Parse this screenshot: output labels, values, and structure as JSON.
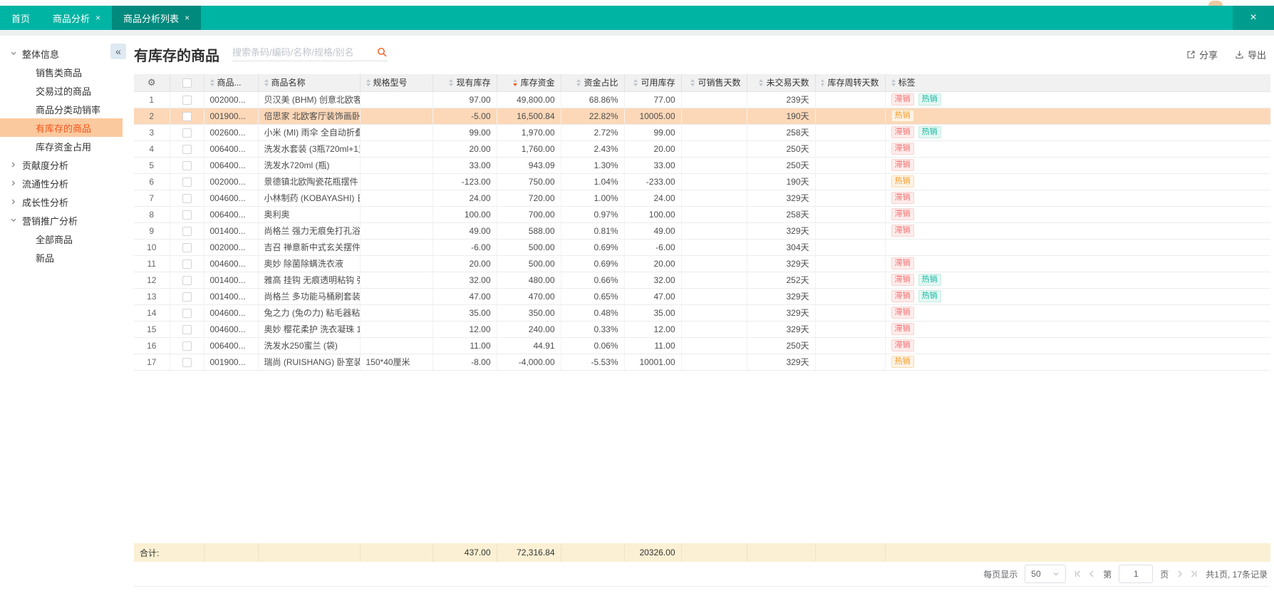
{
  "topbar": {
    "tabs": [
      {
        "label": "首页",
        "closable": false,
        "active": false
      },
      {
        "label": "商品分析",
        "closable": true,
        "active": false
      },
      {
        "label": "商品分析列表",
        "closable": true,
        "active": true
      }
    ],
    "close_glyph": "×"
  },
  "icons": {
    "settings": "⚙"
  },
  "sidebar": {
    "items": [
      {
        "label": "整体信息",
        "level": 0,
        "expanded": true
      },
      {
        "label": "销售类商品",
        "level": 1
      },
      {
        "label": "交易过的商品",
        "level": 1
      },
      {
        "label": "商品分类动销率",
        "level": 1
      },
      {
        "label": "有库存的商品",
        "level": 1,
        "selected": true
      },
      {
        "label": "库存资金占用",
        "level": 1
      },
      {
        "label": "贡献度分析",
        "level": 0,
        "expanded": false
      },
      {
        "label": "流通性分析",
        "level": 0,
        "expanded": false
      },
      {
        "label": "成长性分析",
        "level": 0,
        "expanded": false
      },
      {
        "label": "营销推广分析",
        "level": 0,
        "expanded": true
      },
      {
        "label": "全部商品",
        "level": 1
      },
      {
        "label": "新品",
        "level": 1
      }
    ]
  },
  "header": {
    "collapse_icon": "«",
    "title": "有库存的商品",
    "search_placeholder": "搜索条码/编码/名称/规格/别名",
    "share_label": "分享",
    "export_label": "导出"
  },
  "table": {
    "columns": [
      "商品...",
      "商品名称",
      "规格型号",
      "现有库存",
      "库存资金",
      "资金占比",
      "可用库存",
      "可销售天数",
      "未交易天数",
      "库存周转天数",
      "标签"
    ],
    "sorted_column": "库存资金",
    "sort_direction": "desc",
    "rows": [
      {
        "index": 1,
        "code": "002000...",
        "name": "贝汉美 (BHM) 创意北欧客",
        "spec": "",
        "stock": "97.00",
        "funds": "49,800.00",
        "ratio": "68.86%",
        "available": "77.00",
        "sellable_days": "",
        "no_trade_days": "239天",
        "turnover_days": "",
        "highlight": false,
        "tags": [
          {
            "label": "滞销",
            "type": "red"
          },
          {
            "label": "热销",
            "type": "teal"
          }
        ]
      },
      {
        "index": 2,
        "code": "001900...",
        "name": "倍思家 北欧客厅装饰画卧室",
        "spec": "",
        "stock": "-5.00",
        "funds": "16,500.84",
        "ratio": "22.82%",
        "available": "10005.00",
        "sellable_days": "",
        "no_trade_days": "190天",
        "turnover_days": "",
        "highlight": true,
        "tags": [
          {
            "label": "热销",
            "type": "orange"
          }
        ]
      },
      {
        "index": 3,
        "code": "002600...",
        "name": "小米 (MI) 雨伞 全自动折叠",
        "spec": "",
        "stock": "99.00",
        "funds": "1,970.00",
        "ratio": "2.72%",
        "available": "99.00",
        "sellable_days": "",
        "no_trade_days": "258天",
        "turnover_days": "",
        "highlight": false,
        "tags": [
          {
            "label": "滞销",
            "type": "red"
          },
          {
            "label": "热销",
            "type": "teal"
          }
        ]
      },
      {
        "index": 4,
        "code": "006400...",
        "name": "洗发水套装 (3瓶720ml+1支",
        "spec": "",
        "stock": "20.00",
        "funds": "1,760.00",
        "ratio": "2.43%",
        "available": "20.00",
        "sellable_days": "",
        "no_trade_days": "250天",
        "turnover_days": "",
        "highlight": false,
        "tags": [
          {
            "label": "滞销",
            "type": "red"
          }
        ]
      },
      {
        "index": 5,
        "code": "006400...",
        "name": "洗发水720ml (瓶)",
        "spec": "",
        "stock": "33.00",
        "funds": "943.09",
        "ratio": "1.30%",
        "available": "33.00",
        "sellable_days": "",
        "no_trade_days": "250天",
        "turnover_days": "",
        "highlight": false,
        "tags": [
          {
            "label": "滞销",
            "type": "red"
          }
        ]
      },
      {
        "index": 6,
        "code": "002000...",
        "name": "景德镇北欧陶瓷花瓶摆件 仿",
        "spec": "",
        "stock": "-123.00",
        "funds": "750.00",
        "ratio": "1.04%",
        "available": "-233.00",
        "sellable_days": "",
        "no_trade_days": "190天",
        "turnover_days": "",
        "highlight": false,
        "tags": [
          {
            "label": "热销",
            "type": "orange"
          }
        ]
      },
      {
        "index": 7,
        "code": "004600...",
        "name": "小林制药 (KOBAYASHI) 日",
        "spec": "",
        "stock": "24.00",
        "funds": "720.00",
        "ratio": "1.00%",
        "available": "24.00",
        "sellable_days": "",
        "no_trade_days": "329天",
        "turnover_days": "",
        "highlight": false,
        "tags": [
          {
            "label": "滞销",
            "type": "red"
          }
        ]
      },
      {
        "index": 8,
        "code": "006400...",
        "name": "奥利奥",
        "spec": "",
        "stock": "100.00",
        "funds": "700.00",
        "ratio": "0.97%",
        "available": "100.00",
        "sellable_days": "",
        "no_trade_days": "258天",
        "turnover_days": "",
        "highlight": false,
        "tags": [
          {
            "label": "滞销",
            "type": "red"
          }
        ]
      },
      {
        "index": 9,
        "code": "001400...",
        "name": "尚格兰 强力无痕免打孔浴室",
        "spec": "",
        "stock": "49.00",
        "funds": "588.00",
        "ratio": "0.81%",
        "available": "49.00",
        "sellable_days": "",
        "no_trade_days": "329天",
        "turnover_days": "",
        "highlight": false,
        "tags": [
          {
            "label": "滞销",
            "type": "red"
          }
        ]
      },
      {
        "index": 10,
        "code": "002000...",
        "name": "吉召 禅意新中式玄关摆件客",
        "spec": "",
        "stock": "-6.00",
        "funds": "500.00",
        "ratio": "0.69%",
        "available": "-6.00",
        "sellable_days": "",
        "no_trade_days": "304天",
        "turnover_days": "",
        "highlight": false,
        "tags": []
      },
      {
        "index": 11,
        "code": "004600...",
        "name": "奥妙 除菌除螨洗衣液",
        "spec": "",
        "stock": "20.00",
        "funds": "500.00",
        "ratio": "0.69%",
        "available": "20.00",
        "sellable_days": "",
        "no_trade_days": "329天",
        "turnover_days": "",
        "highlight": false,
        "tags": [
          {
            "label": "滞销",
            "type": "red"
          }
        ]
      },
      {
        "index": 12,
        "code": "001400...",
        "name": "雅高 挂钩 无痕透明粘钩 强",
        "spec": "",
        "stock": "32.00",
        "funds": "480.00",
        "ratio": "0.66%",
        "available": "32.00",
        "sellable_days": "",
        "no_trade_days": "252天",
        "turnover_days": "",
        "highlight": false,
        "tags": [
          {
            "label": "滞销",
            "type": "red"
          },
          {
            "label": "热销",
            "type": "teal"
          }
        ]
      },
      {
        "index": 13,
        "code": "001400...",
        "name": "尚格兰 多功能马桶刷套装 壁",
        "spec": "",
        "stock": "47.00",
        "funds": "470.00",
        "ratio": "0.65%",
        "available": "47.00",
        "sellable_days": "",
        "no_trade_days": "329天",
        "turnover_days": "",
        "highlight": false,
        "tags": [
          {
            "label": "滞销",
            "type": "red"
          },
          {
            "label": "热销",
            "type": "teal"
          }
        ]
      },
      {
        "index": 14,
        "code": "004600...",
        "name": "兔之力 (兔の力) 粘毛器粘",
        "spec": "",
        "stock": "35.00",
        "funds": "350.00",
        "ratio": "0.48%",
        "available": "35.00",
        "sellable_days": "",
        "no_trade_days": "329天",
        "turnover_days": "",
        "highlight": false,
        "tags": [
          {
            "label": "滞销",
            "type": "red"
          }
        ]
      },
      {
        "index": 15,
        "code": "004600...",
        "name": "奥妙 樱花柔护 洗衣凝珠 10",
        "spec": "",
        "stock": "12.00",
        "funds": "240.00",
        "ratio": "0.33%",
        "available": "12.00",
        "sellable_days": "",
        "no_trade_days": "329天",
        "turnover_days": "",
        "highlight": false,
        "tags": [
          {
            "label": "滞销",
            "type": "red"
          }
        ]
      },
      {
        "index": 16,
        "code": "006400...",
        "name": "洗发水250蜜兰 (袋)",
        "spec": "",
        "stock": "11.00",
        "funds": "44.91",
        "ratio": "0.06%",
        "available": "11.00",
        "sellable_days": "",
        "no_trade_days": "250天",
        "turnover_days": "",
        "highlight": false,
        "tags": [
          {
            "label": "滞销",
            "type": "red"
          }
        ]
      },
      {
        "index": 17,
        "code": "001900...",
        "name": "瑞尚 (RUISHANG) 卧室装",
        "spec": "150*40厘米",
        "stock": "-8.00",
        "funds": "-4,000.00",
        "ratio": "-5.53%",
        "available": "10001.00",
        "sellable_days": "",
        "no_trade_days": "329天",
        "turnover_days": "",
        "highlight": false,
        "tags": [
          {
            "label": "热销",
            "type": "orange"
          }
        ]
      }
    ],
    "totals": {
      "label": "合计:",
      "stock": "437.00",
      "funds": "72,316.84",
      "available": "20326.00"
    }
  },
  "pagination": {
    "page_size_label": "每页显示",
    "page_size": "50",
    "page_prefix": "第",
    "page_number": "1",
    "page_suffix": "页",
    "summary": "共1页, 17条记录"
  },
  "colors": {
    "theme_teal": "#00b4a4",
    "active_tab": "#00897d",
    "theme_orange": "#f0591c",
    "sidebar_selected_bg": "#fbc99e",
    "selected_row_bg": "#fcd8b8",
    "totals_bg": "#fbf0d3",
    "tag_red": "#f56c6c",
    "tag_teal": "#14b8a2",
    "tag_orange": "#f59a23"
  }
}
